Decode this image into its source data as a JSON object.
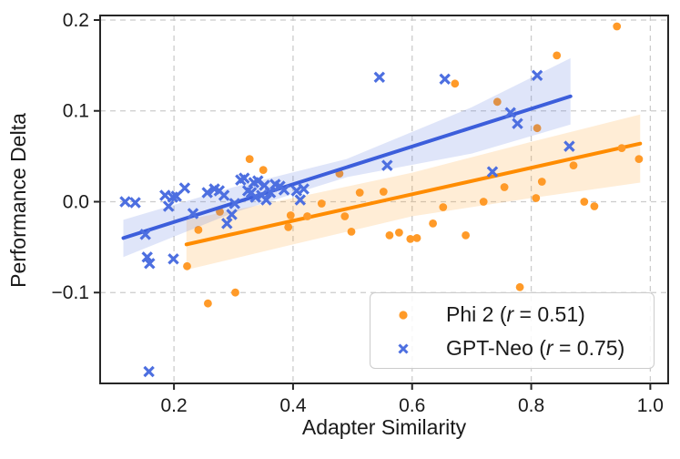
{
  "chart_data": {
    "type": "scatter",
    "title": "",
    "xlabel": "Adapter Similarity",
    "ylabel": "Performance Delta",
    "xlim": [
      0.076,
      1.03
    ],
    "ylim": [
      -0.2,
      0.205
    ],
    "grid": true,
    "legend_position": "lower right",
    "xticks": {
      "values": [
        0.2,
        0.4,
        0.6,
        0.8,
        1.0
      ],
      "labels": [
        "0.2",
        "0.4",
        "0.6",
        "0.8",
        "1.0"
      ]
    },
    "yticks": {
      "values": [
        0.2,
        0.1,
        0.0,
        -0.1
      ],
      "labels": [
        "0.2",
        "0.1",
        "0.0",
        "−0.1"
      ]
    },
    "series": [
      {
        "name": "Phi 2",
        "r": 0.51,
        "marker": "circle",
        "marker_color": "#ff9a28",
        "line_color": "#ff8c00",
        "band_color": "rgba(255,140,0,0.16)",
        "trend": [
          [
            0.221,
            -0.047
          ],
          [
            0.983,
            0.064
          ]
        ],
        "band": [
          [
            0.221,
            -0.02
          ],
          [
            0.4,
            0.004
          ],
          [
            0.6,
            0.032
          ],
          [
            0.8,
            0.066
          ],
          [
            0.983,
            0.096
          ],
          [
            0.983,
            0.021
          ],
          [
            0.8,
            0.004
          ],
          [
            0.6,
            -0.016
          ],
          [
            0.4,
            -0.047
          ],
          [
            0.221,
            -0.075
          ]
        ],
        "points": [
          [
            0.222,
            -0.071
          ],
          [
            0.241,
            -0.031
          ],
          [
            0.257,
            -0.112
          ],
          [
            0.277,
            -0.011
          ],
          [
            0.303,
            -0.1
          ],
          [
            0.327,
            0.047
          ],
          [
            0.35,
            0.035
          ],
          [
            0.392,
            -0.028
          ],
          [
            0.396,
            -0.015
          ],
          [
            0.424,
            -0.016
          ],
          [
            0.448,
            -0.002
          ],
          [
            0.478,
            0.031
          ],
          [
            0.487,
            -0.016
          ],
          [
            0.498,
            -0.033
          ],
          [
            0.512,
            0.01
          ],
          [
            0.552,
            0.011
          ],
          [
            0.562,
            -0.037
          ],
          [
            0.578,
            -0.034
          ],
          [
            0.597,
            -0.041
          ],
          [
            0.608,
            -0.04
          ],
          [
            0.635,
            -0.024
          ],
          [
            0.652,
            -0.006
          ],
          [
            0.672,
            0.13
          ],
          [
            0.69,
            -0.037
          ],
          [
            0.72,
            0.0
          ],
          [
            0.743,
            0.11
          ],
          [
            0.755,
            0.016
          ],
          [
            0.781,
            -0.094
          ],
          [
            0.808,
            0.004
          ],
          [
            0.81,
            0.081
          ],
          [
            0.818,
            0.022
          ],
          [
            0.843,
            0.161
          ],
          [
            0.871,
            0.04
          ],
          [
            0.889,
            0.0
          ],
          [
            0.906,
            -0.005
          ],
          [
            0.944,
            0.193
          ],
          [
            0.952,
            0.059
          ],
          [
            0.981,
            0.047
          ]
        ]
      },
      {
        "name": "GPT-Neo",
        "r": 0.75,
        "marker": "x",
        "marker_color": "#4d6fe0",
        "line_color": "#3c5edb",
        "band_color": "rgba(77,111,224,0.18)",
        "trend": [
          [
            0.115,
            -0.04
          ],
          [
            0.866,
            0.116
          ]
        ],
        "band": [
          [
            0.115,
            -0.02
          ],
          [
            0.3,
            0.016
          ],
          [
            0.49,
            0.047
          ],
          [
            0.7,
            0.104
          ],
          [
            0.866,
            0.158
          ],
          [
            0.866,
            0.085
          ],
          [
            0.7,
            0.053
          ],
          [
            0.49,
            0.027
          ],
          [
            0.3,
            -0.012
          ],
          [
            0.115,
            -0.061
          ]
        ],
        "points": [
          [
            0.118,
            0.0
          ],
          [
            0.135,
            -0.001
          ],
          [
            0.152,
            -0.036
          ],
          [
            0.155,
            -0.061
          ],
          [
            0.159,
            -0.068
          ],
          [
            0.158,
            -0.187
          ],
          [
            0.185,
            0.007
          ],
          [
            0.191,
            -0.005
          ],
          [
            0.198,
            0.005
          ],
          [
            0.199,
            -0.063
          ],
          [
            0.204,
            0.006
          ],
          [
            0.218,
            0.015
          ],
          [
            0.232,
            -0.013
          ],
          [
            0.256,
            0.01
          ],
          [
            0.268,
            0.014
          ],
          [
            0.276,
            0.012
          ],
          [
            0.284,
            0.007
          ],
          [
            0.289,
            -0.024
          ],
          [
            0.297,
            -0.014
          ],
          [
            0.302,
            -0.002
          ],
          [
            0.312,
            0.024
          ],
          [
            0.318,
            0.026
          ],
          [
            0.324,
            0.012
          ],
          [
            0.33,
            0.01
          ],
          [
            0.334,
            0.021
          ],
          [
            0.337,
            0.005
          ],
          [
            0.341,
            0.023
          ],
          [
            0.347,
            0.007
          ],
          [
            0.352,
            0.018
          ],
          [
            0.355,
            0.002
          ],
          [
            0.362,
            0.01
          ],
          [
            0.37,
            0.019
          ],
          [
            0.378,
            0.017
          ],
          [
            0.385,
            0.013
          ],
          [
            0.406,
            0.012
          ],
          [
            0.412,
            0.002
          ],
          [
            0.418,
            0.014
          ],
          [
            0.545,
            0.137
          ],
          [
            0.558,
            0.04
          ],
          [
            0.655,
            0.135
          ],
          [
            0.735,
            0.033
          ],
          [
            0.765,
            0.098
          ],
          [
            0.777,
            0.086
          ],
          [
            0.81,
            0.139
          ],
          [
            0.864,
            0.061
          ]
        ]
      }
    ],
    "style": {
      "grid_color": "#cccccc",
      "spine_color": "#262626",
      "text_color": "#1a1a1a",
      "background": "#ffffff"
    }
  },
  "axes": {
    "xlabel": "Adapter Similarity",
    "ylabel": "Performance Delta"
  },
  "legend": {
    "items": [
      {
        "pre": "Phi 2 (",
        "r": "r",
        "post": " = 0.51)",
        "marker": "dot"
      },
      {
        "pre": "GPT-Neo (",
        "r": "r",
        "post": " = 0.75)",
        "marker": "x"
      }
    ]
  }
}
